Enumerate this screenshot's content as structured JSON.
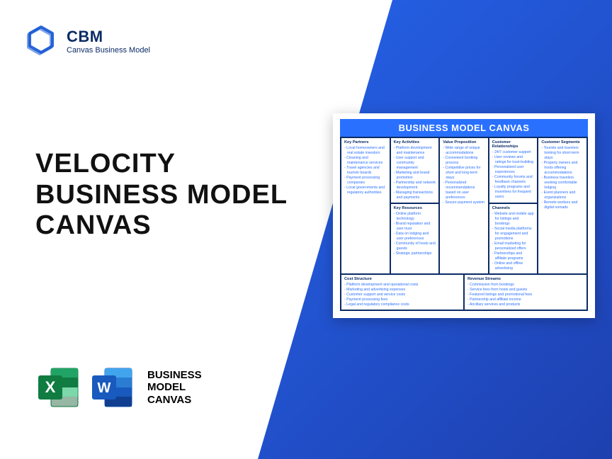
{
  "logo": {
    "acronym": "CBM",
    "subtitle": "Canvas Business Model"
  },
  "title": {
    "line1": "VELOCITY",
    "line2": "BUSINESS MODEL",
    "line3": "CANVAS"
  },
  "bmc_label": {
    "l1": "BUSINESS",
    "l2": "MODEL",
    "l3": "CANVAS"
  },
  "canvas": {
    "header": "BUSINESS MODEL CANVAS",
    "sections": {
      "kp": {
        "title": "Key Partners",
        "items": [
          "Local homeowners and real estate investors",
          "Cleaning and maintenance services",
          "Travel agencies and tourism boards",
          "Payment processing companies",
          "Local governments and regulatory authorities"
        ]
      },
      "ka": {
        "title": "Key Activities",
        "items": [
          "Platform development and maintenance",
          "User support and community management",
          "Marketing and brand promotion",
          "Partnership and network development",
          "Managing transactions and payments"
        ]
      },
      "kr": {
        "title": "Key Resources",
        "items": [
          "Online platform technology",
          "Brand reputation and user trust",
          "Data on lodging and user preferences",
          "Community of hosts and guests",
          "Strategic partnerships"
        ]
      },
      "vp": {
        "title": "Value Proposition",
        "items": [
          "Wide range of unique accommodations",
          "Convenient booking process",
          "Competitive prices for short and long-term stays",
          "Personalized recommendations based on user preferences",
          "Secure payment system"
        ]
      },
      "cr": {
        "title": "Customer Relationships",
        "items": [
          "24/7 customer support",
          "User reviews and ratings for trust-building",
          "Personalized user experiences",
          "Community forums and feedback channels",
          "Loyalty programs and incentives for frequent users"
        ]
      },
      "ch": {
        "title": "Channels",
        "items": [
          "Website and mobile app for listings and bookings",
          "Social media platforms for engagement and promotions",
          "Email marketing for personalized offers",
          "Partnerships and affiliate programs",
          "Online and offline advertising"
        ]
      },
      "cs": {
        "title": "Customer Segments",
        "items": [
          "Tourists and travelers looking for short-term stays",
          "Property owners and hosts offering accommodations",
          "Business travelers seeking comfortable lodging",
          "Event planners and organizations",
          "Remote workers and digital nomads"
        ]
      },
      "cost": {
        "title": "Cost Structure",
        "items": [
          "Platform development and operational costs",
          "Marketing and advertising expenses",
          "Customer support and service costs",
          "Payment processing fees",
          "Legal and regulatory compliance costs"
        ]
      },
      "rev": {
        "title": "Revenue Streams",
        "items": [
          "Commission from bookings",
          "Service fees from hosts and guests",
          "Featured listings and promotional fees",
          "Partnership and affiliate income",
          "Ancillary services and products"
        ]
      }
    }
  },
  "colors": {
    "brand_blue": "#2a70ff",
    "dark_blue": "#0b2b66",
    "excel_green": "#107c41",
    "word_blue": "#185abd"
  }
}
